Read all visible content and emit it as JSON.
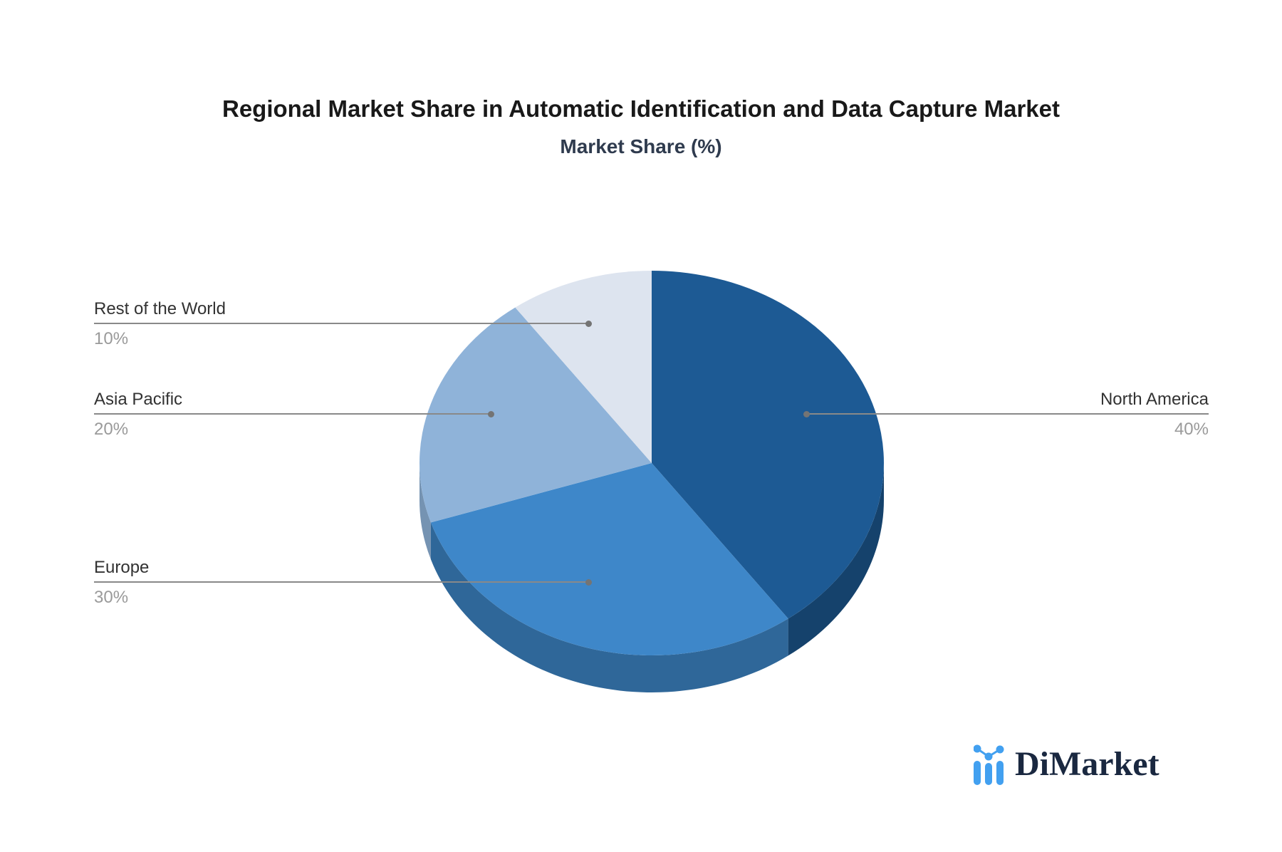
{
  "header": {
    "title": "Regional Market Share in Automatic Identification and Data Capture Market",
    "subtitle": "Market Share (%)"
  },
  "chart_data": {
    "type": "pie",
    "title": "Regional Market Share in Automatic Identification and Data Capture Market",
    "subtitle": "Market Share (%)",
    "unit": "%",
    "effect": "3d",
    "start_angle_deg": 0,
    "direction": "clockwise",
    "slices": [
      {
        "label": "North America",
        "value": 40,
        "display_value": "40%",
        "color": "#1D5A94",
        "side_color": "#15426C"
      },
      {
        "label": "Europe",
        "value": 30,
        "display_value": "30%",
        "color": "#3E87C9",
        "side_color": "#2F6799"
      },
      {
        "label": "Asia Pacific",
        "value": 20,
        "display_value": "20%",
        "color": "#8FB3D9",
        "side_color": "#7593B2"
      },
      {
        "label": "Rest of the World",
        "value": 10,
        "display_value": "10%",
        "color": "#DDE4EF",
        "side_color": "#B5BCC9"
      }
    ],
    "legend_position": "none",
    "label_style": {
      "name_color": "#323232",
      "value_color": "#9A9A9A",
      "leader_line_color": "#898989",
      "leader_dot_color": "#747474"
    }
  },
  "footer": {
    "logo_text": "DiMarket",
    "logo_icon": "bar-line-chart-icon",
    "logo_icon_color": "#42A0F0",
    "logo_text_color": "#1A2840"
  }
}
